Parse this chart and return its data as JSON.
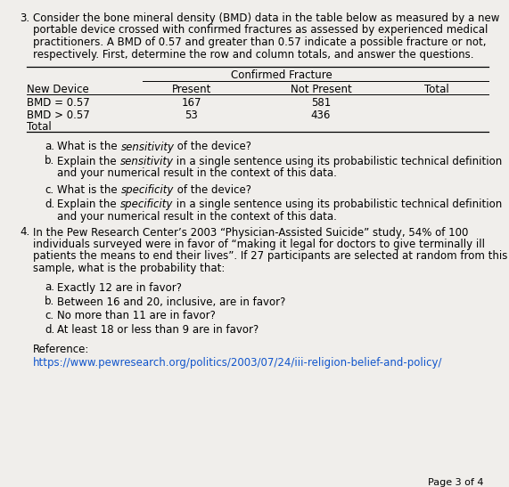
{
  "background_color": "#f0eeeb",
  "q3_number": "3.",
  "q3_text_lines": [
    "Consider the bone mineral density (BMD) data in the table below as measured by a new",
    "portable device crossed with confirmed fractures as assessed by experienced medical",
    "practitioners. A BMD of 0.57 and greater than 0.57 indicate a possible fracture or not,",
    "respectively. First, determine the row and column totals, and answer the questions."
  ],
  "table_header_group": "Confirmed Fracture",
  "table_col0_header": "New Device",
  "table_col1_header": "Present",
  "table_col2_header": "Not Present",
  "table_col3_header": "Total",
  "table_row1_label": "BMD = 0.57",
  "table_row1_c1": "167",
  "table_row1_c2": "581",
  "table_row2_label": "BMD > 0.57",
  "table_row2_c1": "53",
  "table_row2_c2": "436",
  "table_row3_label": "Total",
  "q3a_parts": [
    [
      "normal",
      "What is the "
    ],
    [
      "italic",
      "sensitivity"
    ],
    [
      "normal",
      " of the device?"
    ]
  ],
  "q3b_parts": [
    [
      "normal",
      "Explain the "
    ],
    [
      "italic",
      "sensitivity"
    ],
    [
      "normal",
      " in a single sentence using its probabilistic technical definition"
    ]
  ],
  "q3b_line2": "and your numerical result in the context of this data.",
  "q3c_parts": [
    [
      "normal",
      "What is the "
    ],
    [
      "italic",
      "specificity"
    ],
    [
      "normal",
      " of the device?"
    ]
  ],
  "q3d_parts": [
    [
      "normal",
      "Explain the "
    ],
    [
      "italic",
      "specificity"
    ],
    [
      "normal",
      " in a single sentence using its probabilistic technical definition"
    ]
  ],
  "q3d_line2": "and your numerical result in the context of this data.",
  "q4_number": "4.",
  "q4_text_lines": [
    "In the Pew Research Center’s 2003 “Physician-Assisted Suicide” study, 54% of 100",
    "individuals surveyed were in favor of “making it legal for doctors to give terminally ill",
    "patients the means to end their lives”. If 27 participants are selected at random from this",
    "sample, what is the probability that:"
  ],
  "q4a_text": "Exactly 12 are in favor?",
  "q4b_text": "Between 16 and 20, inclusive, are in favor?",
  "q4c_text": "No more than 11 are in favor?",
  "q4d_text": "At least 18 or less than 9 are in favor?",
  "reference_label": "Reference:",
  "reference_url": "https://www.pewresearch.org/politics/2003/07/24/iii-religion-belief-and-policy/",
  "page_footer": "Page 3 of 4",
  "font_size": 8.5,
  "link_color": "#1155CC"
}
